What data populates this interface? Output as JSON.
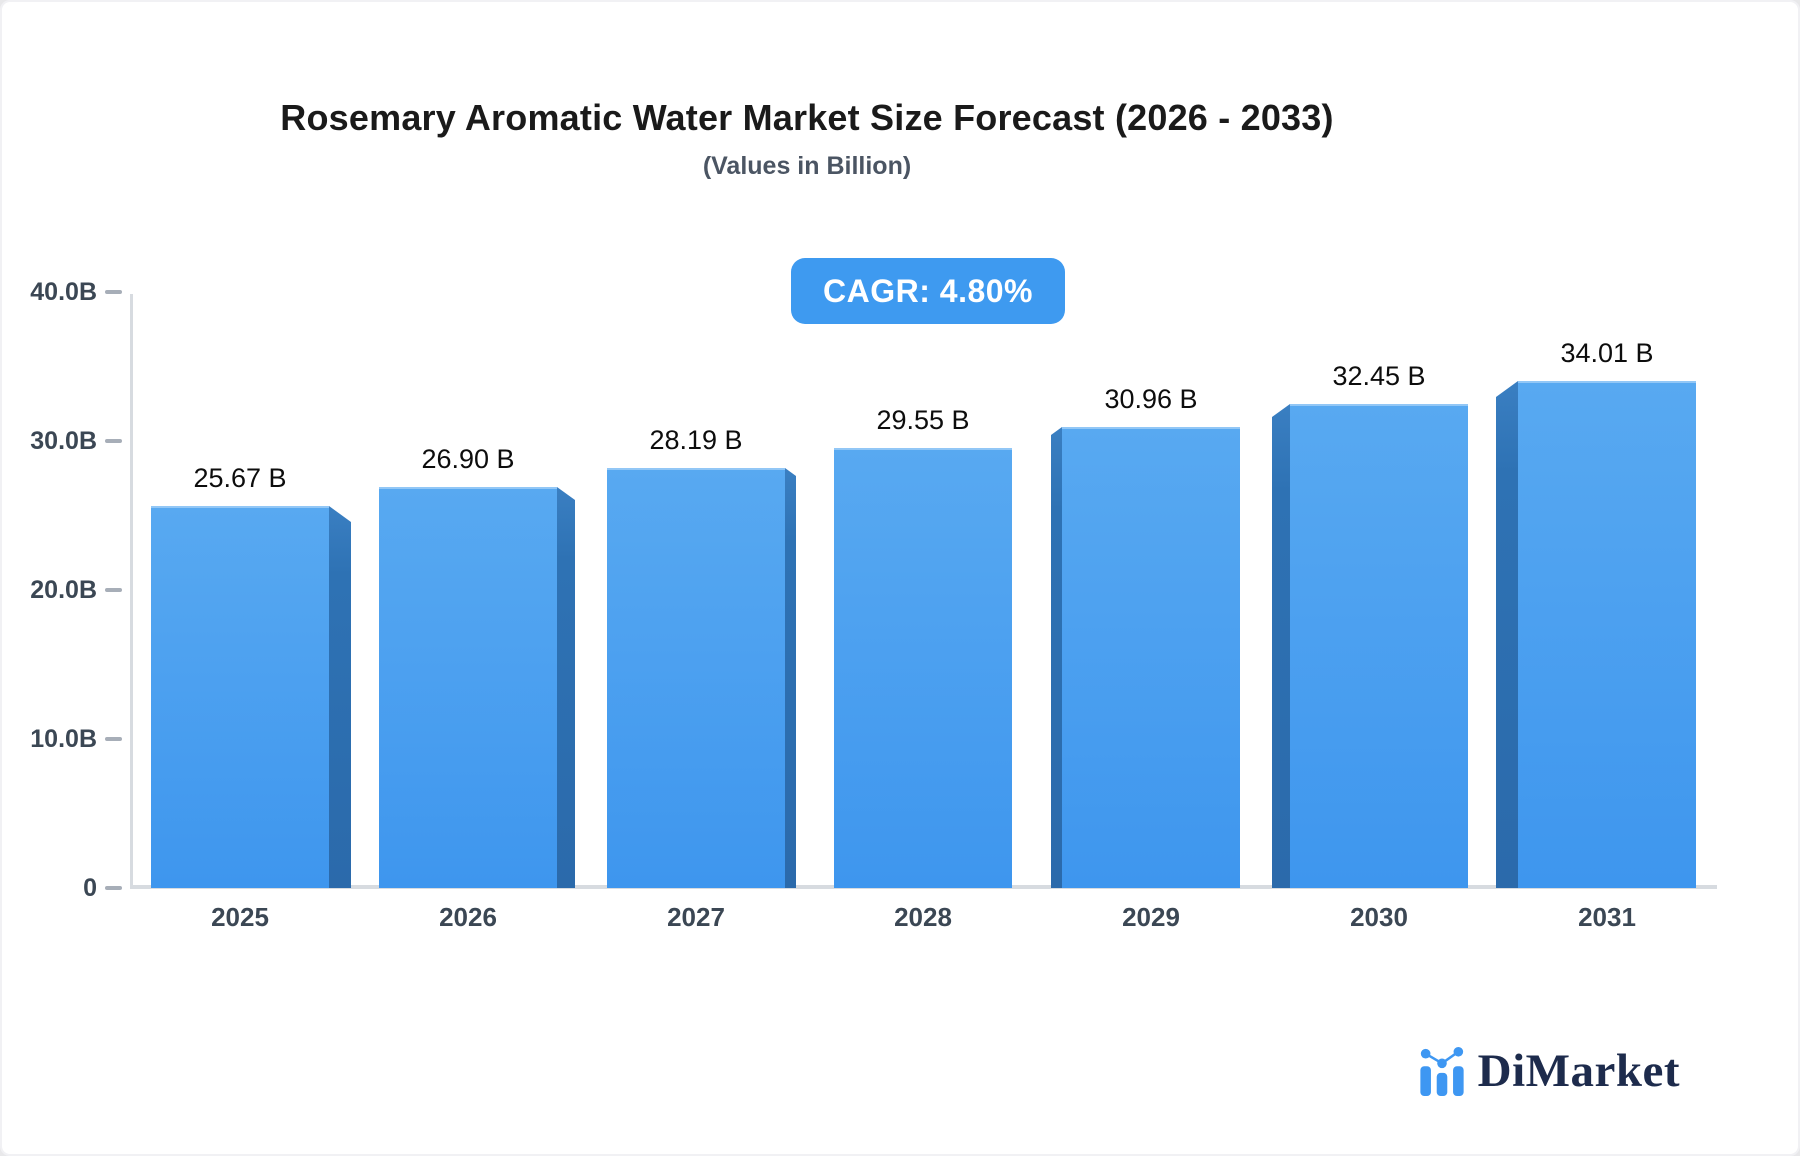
{
  "header": {
    "title": "Rosemary Aromatic Water Market Size Forecast (2026 - 2033)",
    "subtitle": "(Values in Billion)",
    "cagr_badge": "CAGR: 4.80%"
  },
  "chart_data": {
    "type": "bar",
    "title": "Rosemary Aromatic Water Market Size Forecast (2026 - 2033)",
    "subtitle": "(Values in Billion)",
    "cagr_percent": 4.8,
    "unit": "Billion",
    "categories": [
      "2025",
      "2026",
      "2027",
      "2028",
      "2029",
      "2030",
      "2031"
    ],
    "values": [
      25.67,
      26.9,
      28.19,
      29.55,
      30.96,
      32.45,
      34.01
    ],
    "value_labels": [
      "25.67 B",
      "26.90 B",
      "28.19 B",
      "29.55 B",
      "30.96 B",
      "32.45 B",
      "34.01 B"
    ],
    "xlabel": "",
    "ylabel": "",
    "ylim": [
      0,
      40
    ],
    "yticks": [
      {
        "value": 40,
        "label": "40.0B"
      },
      {
        "value": 30,
        "label": "30.0B"
      },
      {
        "value": 20,
        "label": "20.0B"
      },
      {
        "value": 10,
        "label": "10.0B"
      },
      {
        "value": 0,
        "label": "0"
      }
    ],
    "grid": false,
    "legend": null,
    "bar_style": "3d-perspective"
  },
  "colors": {
    "background": "#ffffff",
    "badge_bg": "#3e9af0",
    "badge_text": "#ffffff",
    "bar_face_top": "#58a9f1",
    "bar_face_bottom": "#3e96ee",
    "bar_side": "#2e72b4",
    "axis_line": "#d7dbe0",
    "tick_dash": "#a7aeb8",
    "axis_label": "#3b4754",
    "value_label": "#0d0d0d",
    "title": "#1a1a1a",
    "subtitle": "#4b5563",
    "logo_text": "#1d2b4c",
    "logo_icon": "#3e97f2"
  },
  "logo": {
    "text": "DiMarket"
  }
}
